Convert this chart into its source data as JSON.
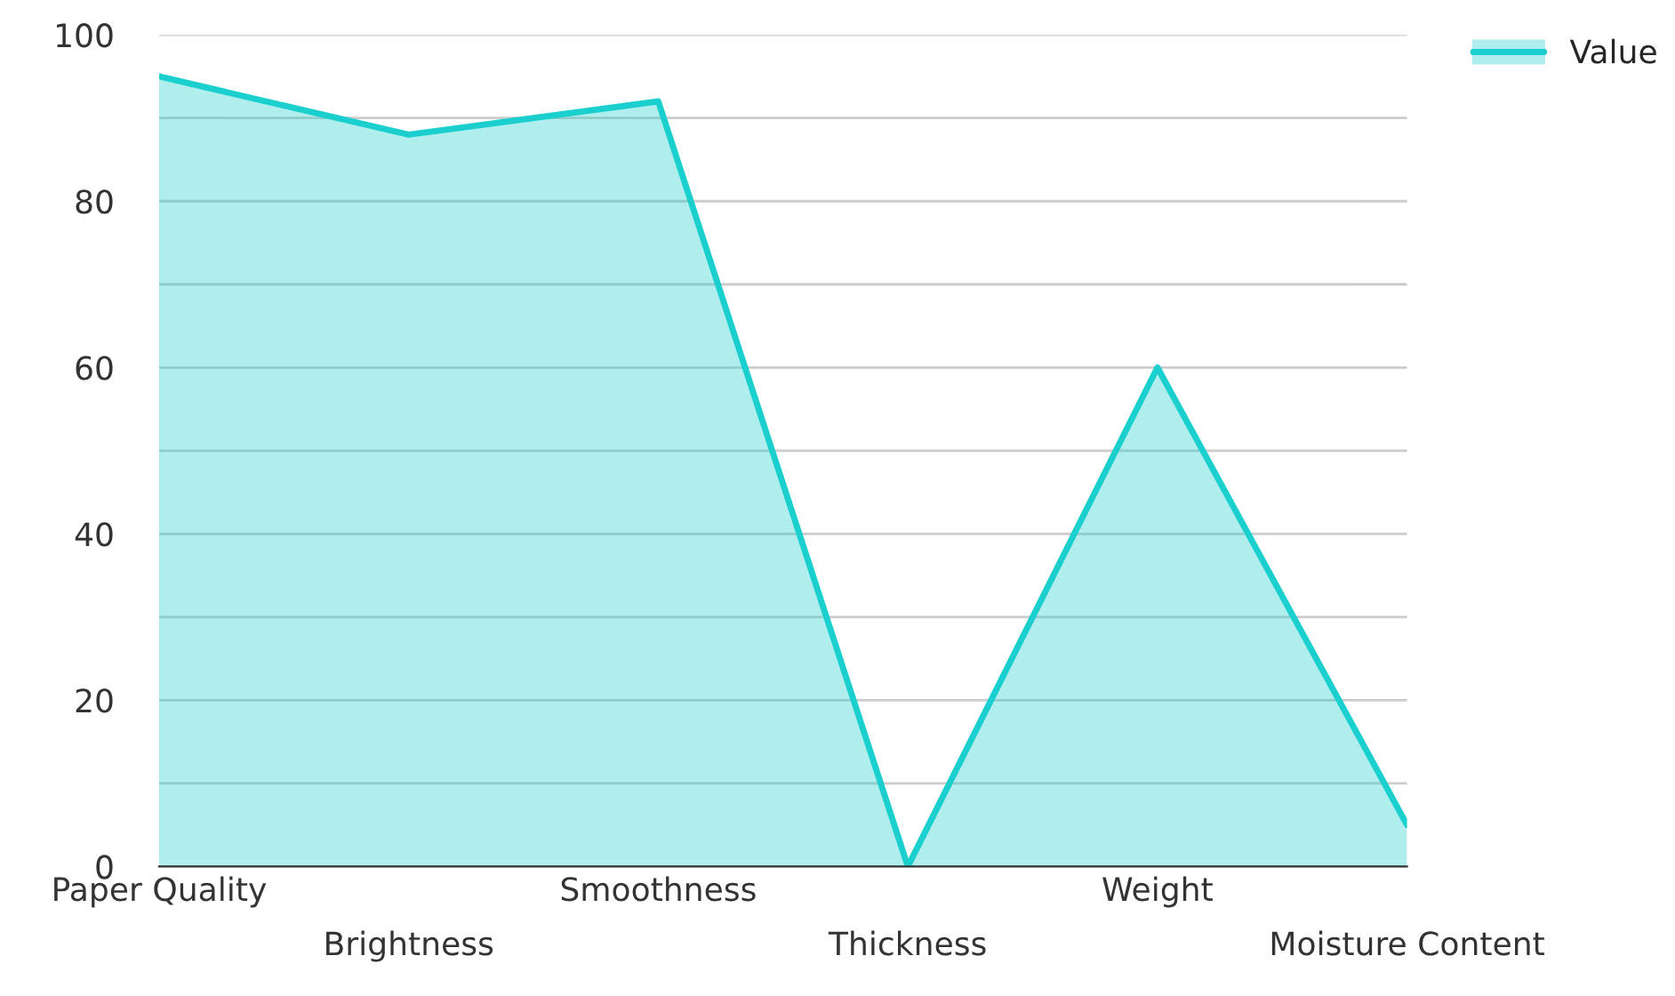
{
  "chart_data": {
    "type": "area",
    "categories": [
      "Paper Quality",
      "Brightness",
      "Smoothness",
      "Thickness",
      "Weight",
      "Moisture Content"
    ],
    "series": [
      {
        "name": "Value",
        "color": "#1ccfcf",
        "values": [
          95,
          88,
          92,
          0,
          60,
          5
        ]
      }
    ],
    "ylim": [
      0,
      100
    ],
    "yticks": [
      0,
      {
        "value": 10,
        "label": null
      },
      20,
      {
        "value": 30,
        "label": null
      },
      40,
      {
        "value": 50,
        "label": null
      },
      60,
      {
        "value": 70,
        "label": null
      },
      80,
      {
        "value": 90,
        "label": null
      },
      100
    ],
    "grid": "y",
    "legend": "top right"
  }
}
